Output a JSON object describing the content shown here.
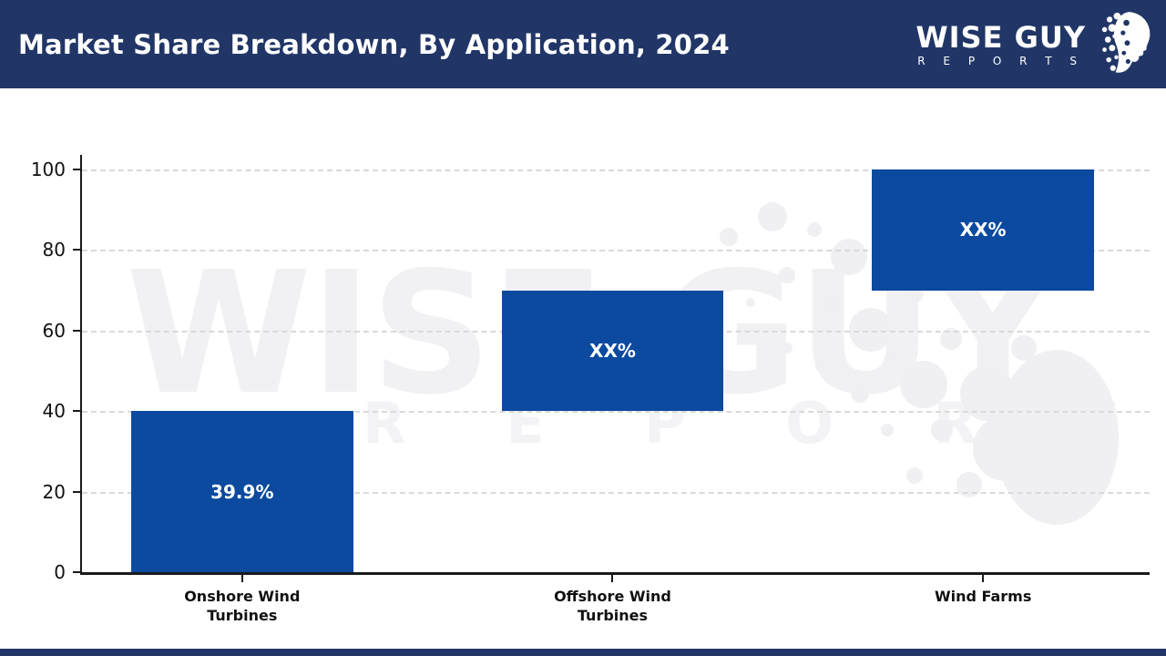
{
  "header": {
    "title": "Market Share Breakdown, By Application, 2024",
    "logo": {
      "brand": "WISE GUY",
      "brand_sub": "R E P O R T S"
    }
  },
  "watermark": {
    "brand": "WISE GUY",
    "brand_sub": "R E P O R T S"
  },
  "chart_data": {
    "type": "bar",
    "subtype": "floating-waterfall",
    "title": "Market Share Breakdown, By Application, 2024",
    "categories": [
      "Onshore Wind Turbines",
      "Offshore Wind Turbines",
      "Wind Farms"
    ],
    "category_label_lines": [
      [
        "Onshore Wind",
        "Turbines"
      ],
      [
        "Offshore Wind",
        "Turbines"
      ],
      [
        "Wind Farms"
      ]
    ],
    "bars": [
      {
        "category": "Onshore Wind Turbines",
        "start": 0,
        "end": 40,
        "value": 39.9,
        "value_label": "39.9%"
      },
      {
        "category": "Offshore Wind Turbines",
        "start": 40,
        "end": 70,
        "value": 30,
        "value_label": "XX%"
      },
      {
        "category": "Wind Farms",
        "start": 70,
        "end": 100,
        "value": 30,
        "value_label": "XX%"
      }
    ],
    "yticks": [
      0,
      20,
      40,
      60,
      80,
      100
    ],
    "ylim": [
      0,
      103.6
    ],
    "xlabel": "",
    "ylabel": "",
    "legend": "none",
    "grid": "horizontal-dashed",
    "colors": {
      "bar": "#0b4a9f",
      "bar_label": "#ffffff",
      "axis": "#1a1a1a",
      "grid": "#d9d9d9",
      "tick_label": "#111111",
      "header_bg": "#213667",
      "footer_bg": "#213667",
      "watermark": "#f1f1f4"
    }
  }
}
